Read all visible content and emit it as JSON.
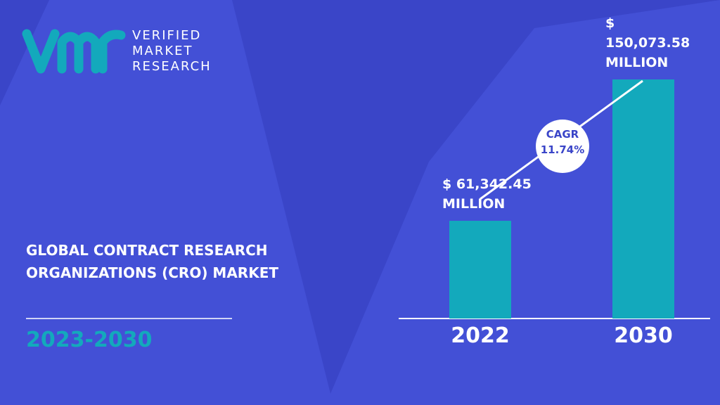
{
  "logo": {
    "lines": [
      "VERIFIED",
      "MARKET",
      "RESEARCH"
    ]
  },
  "chart_data": {
    "type": "bar",
    "title": "GLOBAL CONTRACT RESEARCH ORGANIZATIONS (CRO) MARKET",
    "subtitle": "2023-2030",
    "categories": [
      "2022",
      "2030"
    ],
    "values": [
      61342.45,
      150073.58
    ],
    "value_labels": [
      "$ 61,342.45 MILLION",
      "$ 150,073.58 MILLION"
    ],
    "color": "#13a9bc",
    "annotation": {
      "label": "CAGR",
      "value": "11.74%"
    }
  }
}
